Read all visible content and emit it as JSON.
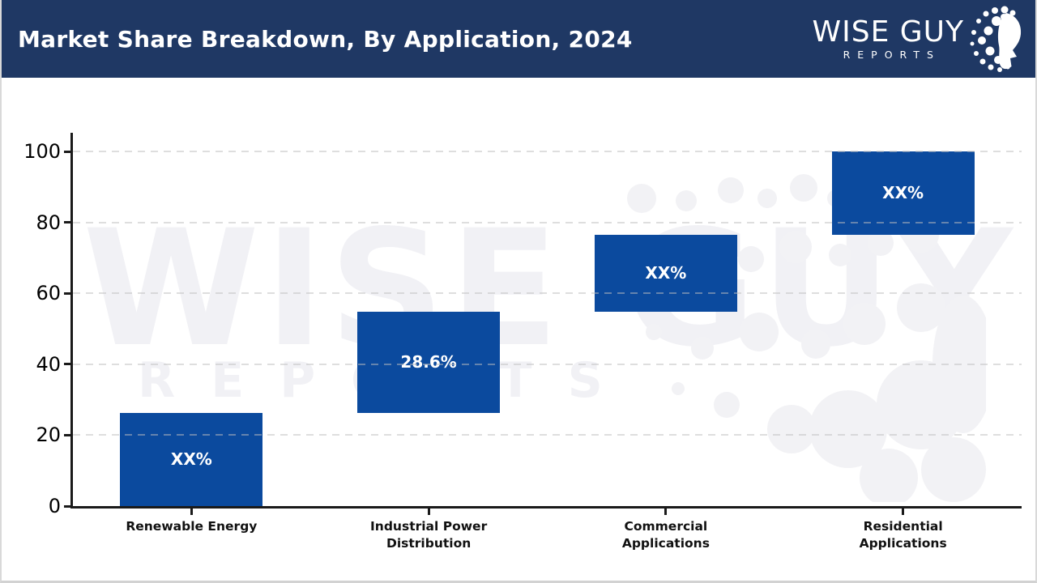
{
  "header": {
    "title": "Market Share Breakdown, By Application, 2024",
    "bg_color": "#1f3864",
    "logo": {
      "line1": "WISE GUY",
      "line2": "REPORTS"
    }
  },
  "watermark": {
    "line1": "WISE GUY",
    "line2": "REPORTS"
  },
  "chart_data": {
    "type": "bar",
    "subtype": "floating-waterfall",
    "title": "Market Share Breakdown, By Application, 2024",
    "categories": [
      "Renewable Energy",
      "Industrial Power Distribution",
      "Commercial Applications",
      "Residential Applications"
    ],
    "category_lines": [
      [
        "Renewable Energy"
      ],
      [
        "Industrial Power",
        "Distribution"
      ],
      [
        "Commercial",
        "Applications"
      ],
      [
        "Residential",
        "Applications"
      ]
    ],
    "segments": [
      {
        "category": "Renewable Energy",
        "start": 0,
        "end": 26.3,
        "label": "XX%"
      },
      {
        "category": "Industrial Power Distribution",
        "start": 26.3,
        "end": 54.9,
        "label": "28.6%"
      },
      {
        "category": "Commercial Applications",
        "start": 54.9,
        "end": 76.6,
        "label": "XX%"
      },
      {
        "category": "Residential Applications",
        "start": 76.6,
        "end": 100.0,
        "label": "XX%"
      }
    ],
    "yticks": [
      0,
      20,
      40,
      60,
      80,
      100
    ],
    "ylim": [
      0,
      105.3
    ],
    "xlabel": "",
    "ylabel": "",
    "legend": "none",
    "grid": "horizontal-dashed",
    "bar_color": "#0b4a9e",
    "bar_label_color": "#ffffff",
    "axis_color": "#1a1a1a",
    "gridline_color": "#d9d9d9"
  }
}
